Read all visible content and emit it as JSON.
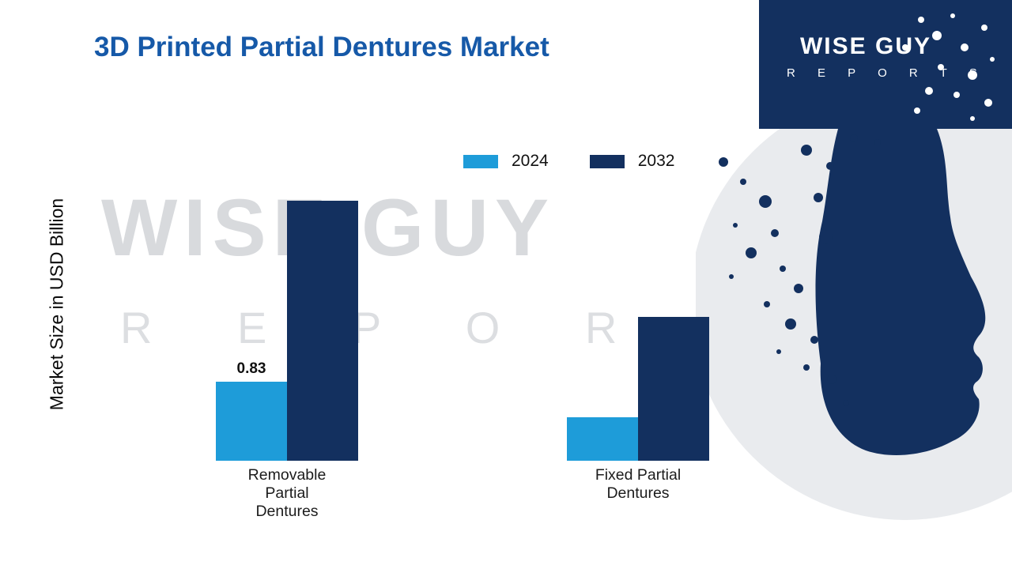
{
  "page": {
    "title": "3D Printed Partial Dentures Market"
  },
  "logo": {
    "name": "WISE GUY",
    "tagline": "R E P O R T S"
  },
  "watermark": {
    "line1": "WISE GUY",
    "line2": "R E P O R T S"
  },
  "colors": {
    "title_blue": "#1659a8",
    "series_2024": "#1e9cd9",
    "series_2032": "#13305f",
    "brand_navy": "#13305f",
    "watermark_gray": "#d8dadd",
    "circle_gray": "#e9ebee"
  },
  "chart_data": {
    "type": "bar",
    "title": "3D Printed Partial Dentures Market",
    "ylabel": "Market Size in USD Billion",
    "ylim": [
      0,
      3
    ],
    "grid": false,
    "legend_position": "top",
    "categories": [
      "Removable Partial Dentures",
      "Fixed Partial Dentures"
    ],
    "series": [
      {
        "name": "2024",
        "color": "#1e9cd9",
        "values": [
          0.83,
          0.46
        ],
        "data_labels": [
          "0.83",
          ""
        ]
      },
      {
        "name": "2032",
        "color": "#13305f",
        "values": [
          2.74,
          1.52
        ],
        "data_labels": [
          "",
          ""
        ]
      }
    ]
  }
}
